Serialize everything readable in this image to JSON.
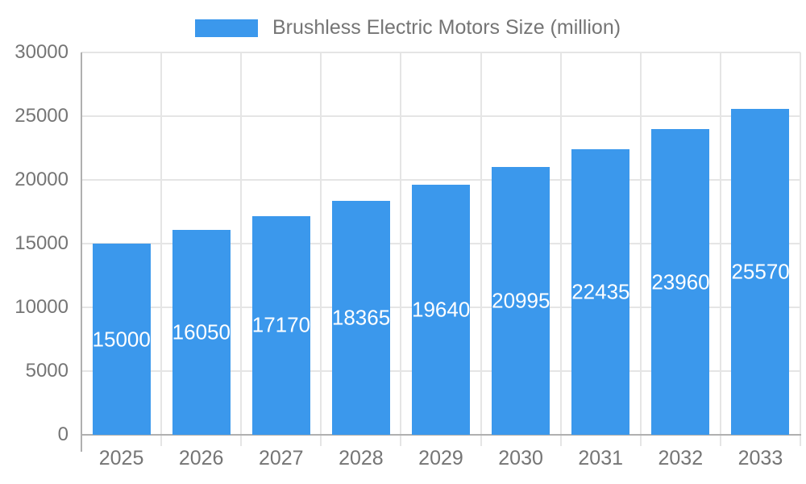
{
  "chart_data": {
    "type": "bar",
    "title": "",
    "legend": "Brushless Electric Motors Size (million)",
    "legend_position": "top",
    "categories": [
      "2025",
      "2026",
      "2027",
      "2028",
      "2029",
      "2030",
      "2031",
      "2032",
      "2033"
    ],
    "values": [
      15000,
      16050,
      17170,
      18365,
      19640,
      20995,
      22435,
      23960,
      25570
    ],
    "xlabel": "",
    "ylabel": "",
    "ylim": [
      0,
      30000
    ],
    "yticks": [
      0,
      5000,
      10000,
      15000,
      20000,
      25000,
      30000
    ],
    "grid": true,
    "bar_color": "#3b98ec",
    "bar_label_color": "#ffffff",
    "axis_color": "#b0b0b0",
    "grid_color": "#e5e5e5",
    "tick_text_color": "#757575"
  }
}
